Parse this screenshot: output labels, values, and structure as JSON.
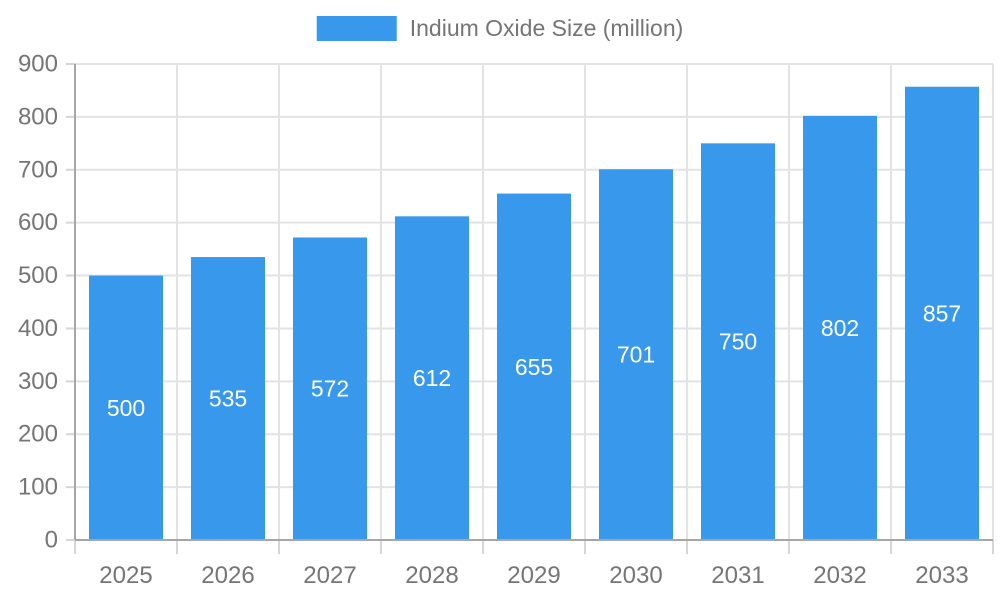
{
  "legend": {
    "label": "Indium Oxide Size (million)"
  },
  "colors": {
    "bar": "#3899EC",
    "axis_line": "#a6a6a6",
    "grid_line": "#e3e3e3",
    "tick_line": "#d6d6d6",
    "axis_label_text": "#757575",
    "value_label_text": "#ffffff",
    "background": "#ffffff"
  },
  "chart_data": {
    "type": "bar",
    "title": "Indium Oxide Size (million)",
    "categories": [
      "2025",
      "2026",
      "2027",
      "2028",
      "2029",
      "2030",
      "2031",
      "2032",
      "2033"
    ],
    "values": [
      500,
      535,
      572,
      612,
      655,
      701,
      750,
      802,
      857
    ],
    "series": [
      {
        "name": "Indium Oxide Size (million)",
        "values": [
          500,
          535,
          572,
          612,
          655,
          701,
          750,
          802,
          857
        ]
      }
    ],
    "xlabel": "",
    "ylabel": "",
    "ylim": [
      0,
      900
    ],
    "ytick_interval": 100,
    "ytick_labels": [
      "0",
      "100",
      "200",
      "300",
      "400",
      "500",
      "600",
      "700",
      "800",
      "900"
    ],
    "grid": true,
    "value_labels_shown": true,
    "value_label_position": "inside-center",
    "legend_position": "top"
  }
}
